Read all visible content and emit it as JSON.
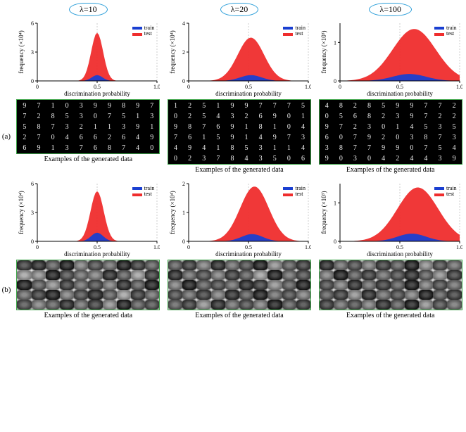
{
  "headers": {
    "l10": "λ=10",
    "l20": "λ=20",
    "l100": "λ=100"
  },
  "row_labels": {
    "a": "(a)",
    "b": "(b)"
  },
  "captions": {
    "examples": "Examples of the generated data",
    "xlabel": "discrimination probability",
    "ylabel4": "frequency (×10⁴)",
    "ylabel3": "frequency (×10³)"
  },
  "legend": {
    "train": "train",
    "test": "test"
  },
  "colors": {
    "train": "#1a3fd1",
    "test": "#ef2d2d",
    "axis": "#000000",
    "grid_border": "#3fa64a",
    "lambda_border": "#2b9ed9",
    "dashed": "#999999"
  },
  "charts": {
    "a10": {
      "ylabel": "frequency (×10⁴)",
      "xlim": [
        0,
        1
      ],
      "ylim": [
        0,
        6
      ],
      "xticks": [
        0,
        0.5,
        1.0
      ],
      "yticks": [
        0,
        3,
        6
      ],
      "test_mu": 0.5,
      "test_sigma": 0.05,
      "test_peak": 5.0,
      "train_mu": 0.5,
      "train_sigma": 0.045,
      "train_peak": 0.6
    },
    "a20": {
      "ylabel": "frequency (×10⁴)",
      "xlim": [
        0,
        1
      ],
      "ylim": [
        0,
        4
      ],
      "xticks": [
        0,
        0.5,
        1.0
      ],
      "yticks": [
        0,
        2,
        4
      ],
      "test_mu": 0.52,
      "test_sigma": 0.11,
      "test_peak": 3.0,
      "train_mu": 0.52,
      "train_sigma": 0.09,
      "train_peak": 0.4
    },
    "a100": {
      "ylabel": "frequency (×10³)",
      "xlim": [
        0,
        1
      ],
      "ylim": [
        0,
        1.5
      ],
      "xticks": [
        0,
        0.5,
        1.0
      ],
      "yticks": [
        0,
        1
      ],
      "test_mu": 0.62,
      "test_sigma": 0.18,
      "test_peak": 1.35,
      "train_mu": 0.58,
      "train_sigma": 0.14,
      "train_peak": 0.18
    },
    "b10": {
      "ylabel": "frequency (×10⁴)",
      "xlim": [
        0,
        1
      ],
      "ylim": [
        0,
        6
      ],
      "xticks": [
        0,
        0.5,
        1.0
      ],
      "yticks": [
        0,
        3,
        6
      ],
      "test_mu": 0.5,
      "test_sigma": 0.055,
      "test_peak": 5.2,
      "train_mu": 0.5,
      "train_sigma": 0.05,
      "train_peak": 0.9
    },
    "b20": {
      "ylabel": "frequency (×10⁴)",
      "xlim": [
        0,
        1
      ],
      "ylim": [
        0,
        2
      ],
      "xticks": [
        0,
        0.5,
        1.0
      ],
      "yticks": [
        0,
        1,
        2
      ],
      "test_mu": 0.55,
      "test_sigma": 0.12,
      "test_peak": 1.9,
      "train_mu": 0.53,
      "train_sigma": 0.09,
      "train_peak": 0.25
    },
    "b100": {
      "ylabel": "frequency (×10³)",
      "xlim": [
        0,
        1
      ],
      "ylim": [
        0,
        1.5
      ],
      "xticks": [
        0,
        0.5,
        1.0
      ],
      "yticks": [
        0,
        1
      ],
      "test_mu": 0.65,
      "test_sigma": 0.17,
      "test_peak": 1.4,
      "train_mu": 0.6,
      "train_sigma": 0.12,
      "train_peak": 0.2
    }
  },
  "digits": {
    "a10": [
      [
        "9",
        "7",
        "1",
        "0",
        "3",
        "9",
        "9",
        "8",
        "9",
        "7"
      ],
      [
        "7",
        "2",
        "8",
        "5",
        "3",
        "0",
        "7",
        "5",
        "1",
        "3"
      ],
      [
        "5",
        "8",
        "7",
        "3",
        "2",
        "1",
        "1",
        "3",
        "9",
        "1"
      ],
      [
        "2",
        "7",
        "0",
        "4",
        "6",
        "6",
        "2",
        "6",
        "4",
        "9"
      ],
      [
        "6",
        "9",
        "1",
        "3",
        "7",
        "6",
        "8",
        "7",
        "4",
        "0"
      ]
    ],
    "a20": [
      [
        "1",
        "2",
        "5",
        "1",
        "9",
        "9",
        "7",
        "7",
        "7",
        "5"
      ],
      [
        "0",
        "2",
        "5",
        "4",
        "3",
        "2",
        "6",
        "9",
        "0",
        "1"
      ],
      [
        "9",
        "8",
        "7",
        "6",
        "9",
        "1",
        "8",
        "1",
        "0",
        "4"
      ],
      [
        "7",
        "6",
        "1",
        "5",
        "9",
        "1",
        "4",
        "9",
        "7",
        "3"
      ],
      [
        "4",
        "9",
        "4",
        "1",
        "8",
        "5",
        "3",
        "1",
        "1",
        "4"
      ],
      [
        "0",
        "2",
        "3",
        "7",
        "8",
        "4",
        "3",
        "5",
        "0",
        "6"
      ]
    ],
    "a100": [
      [
        "4",
        "8",
        "2",
        "8",
        "5",
        "9",
        "9",
        "7",
        "7",
        "2"
      ],
      [
        "0",
        "5",
        "6",
        "8",
        "2",
        "3",
        "9",
        "7",
        "2",
        "2"
      ],
      [
        "9",
        "7",
        "2",
        "3",
        "0",
        "1",
        "4",
        "5",
        "3",
        "5"
      ],
      [
        "6",
        "0",
        "7",
        "9",
        "2",
        "0",
        "3",
        "8",
        "7",
        "3"
      ],
      [
        "3",
        "8",
        "7",
        "7",
        "9",
        "9",
        "0",
        "7",
        "5",
        "4"
      ],
      [
        "9",
        "0",
        "3",
        "0",
        "4",
        "2",
        "4",
        "4",
        "3",
        "9"
      ]
    ]
  },
  "fashion_shades": {
    "b10": [
      [
        40,
        35,
        50,
        30,
        60,
        45,
        55,
        30,
        40,
        50
      ],
      [
        70,
        65,
        30,
        45,
        55,
        60,
        35,
        50,
        70,
        40
      ],
      [
        30,
        50,
        65,
        40,
        55,
        45,
        60,
        35,
        50,
        30
      ],
      [
        55,
        40,
        30,
        60,
        45,
        35,
        50,
        70,
        40,
        55
      ],
      [
        45,
        60,
        50,
        35,
        55,
        40,
        65,
        30,
        50,
        45
      ]
    ],
    "b20": [
      [
        50,
        40,
        60,
        35,
        55,
        45,
        30,
        65,
        50,
        40
      ],
      [
        35,
        55,
        45,
        60,
        40,
        50,
        70,
        30,
        55,
        45
      ],
      [
        60,
        30,
        50,
        45,
        55,
        35,
        40,
        65,
        50,
        30
      ],
      [
        45,
        55,
        40,
        60,
        35,
        50,
        30,
        55,
        45,
        60
      ],
      [
        50,
        40,
        65,
        35,
        55,
        45,
        60,
        30,
        50,
        40
      ]
    ],
    "b100": [
      [
        35,
        55,
        45,
        60,
        40,
        50,
        30,
        65,
        45,
        55
      ],
      [
        60,
        30,
        50,
        40,
        55,
        45,
        35,
        50,
        65,
        40
      ],
      [
        45,
        60,
        35,
        55,
        40,
        50,
        30,
        60,
        45,
        55
      ],
      [
        50,
        40,
        65,
        35,
        55,
        45,
        60,
        30,
        50,
        40
      ],
      [
        40,
        55,
        45,
        60,
        35,
        50,
        30,
        65,
        45,
        55
      ]
    ]
  }
}
